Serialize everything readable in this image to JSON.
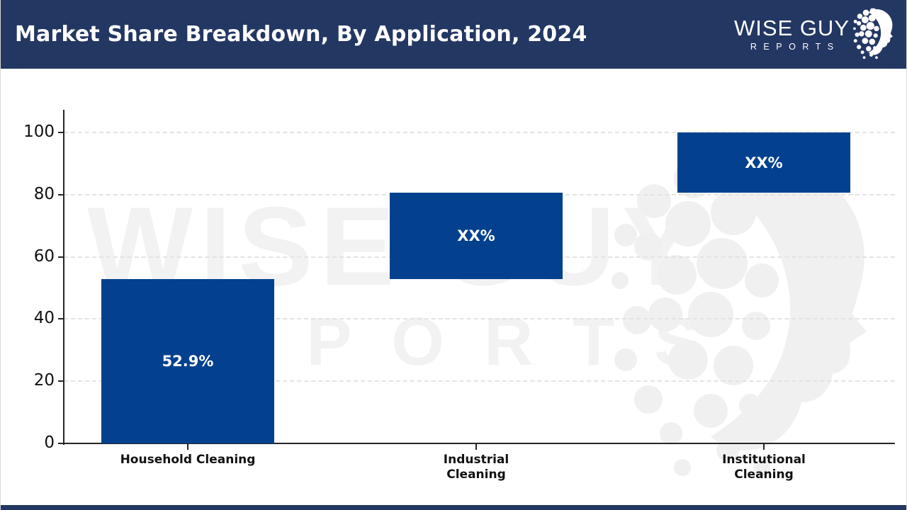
{
  "header": {
    "title": "Market Share Breakdown, By Application, 2024",
    "logo": {
      "line1": "WISE GUY",
      "line2": "REPORTS"
    }
  },
  "watermark": {
    "line1": "WISE GUY",
    "line2": "REPORTS"
  },
  "chart_data": {
    "type": "bar",
    "variant": "waterfall",
    "title": "Market Share Breakdown, By Application, 2024",
    "categories": [
      "Household Cleaning",
      "Industrial Cleaning",
      "Institutional Cleaning"
    ],
    "category_label_lines": [
      [
        "Household Cleaning"
      ],
      [
        "Industrial",
        "Cleaning"
      ],
      [
        "Institutional",
        "Cleaning"
      ]
    ],
    "segments": [
      {
        "category": "Household Cleaning",
        "from": 0,
        "to": 52.9,
        "label": "52.9%"
      },
      {
        "category": "Industrial Cleaning",
        "from": 52.9,
        "to": 80.6,
        "label": "XX%"
      },
      {
        "category": "Institutional Cleaning",
        "from": 80.6,
        "to": 100,
        "label": "XX%"
      }
    ],
    "ylim": [
      0,
      100
    ],
    "yticks": [
      0,
      20,
      40,
      60,
      80,
      100
    ],
    "xlabel": "",
    "ylabel": "",
    "grid": "dashed-horizontal",
    "legend": "none"
  },
  "colors": {
    "header_bg": "#233763",
    "footer_bg": "#233763",
    "bar": "#03418f",
    "bar_label": "#ffffff",
    "axis": "#262626",
    "grid": "#e3e3e3",
    "tick_text": "#111111",
    "watermark": "#f2f2f2"
  }
}
